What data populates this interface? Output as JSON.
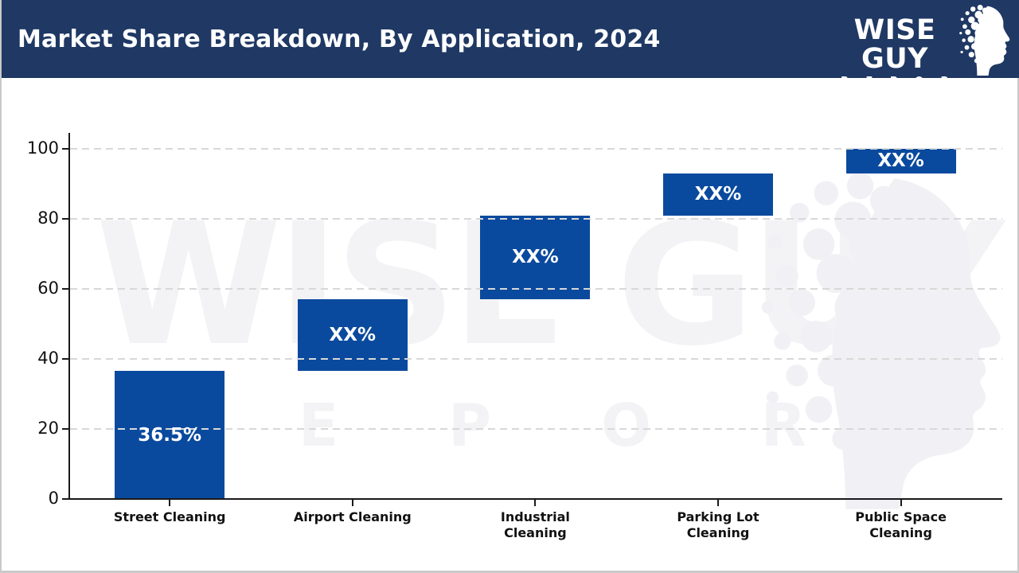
{
  "header": {
    "title": "Market Share Breakdown, By Application, 2024",
    "logo": {
      "line1": "WISE GUY",
      "line2": "R E P O R T S"
    }
  },
  "watermark": {
    "line1": "WISE GUY",
    "line2": "R E P O R T S"
  },
  "chart_data": {
    "type": "bar",
    "subtype": "waterfall",
    "title": "Market Share Breakdown, By Application, 2024",
    "categories": [
      "Street Cleaning",
      "Airport Cleaning",
      "Industrial Cleaning",
      "Parking Lot Cleaning",
      "Public Space Cleaning"
    ],
    "tick_labels": [
      "Street Cleaning",
      "Airport Cleaning",
      "Industrial\nCleaning",
      "Parking Lot\nCleaning",
      "Public Space\nCleaning"
    ],
    "segments": [
      {
        "category": "Street Cleaning",
        "start": 0,
        "end": 36.5,
        "label": "36.5%"
      },
      {
        "category": "Airport Cleaning",
        "start": 36.5,
        "end": 57,
        "label": "XX%"
      },
      {
        "category": "Industrial Cleaning",
        "start": 57,
        "end": 81,
        "label": "XX%"
      },
      {
        "category": "Parking Lot Cleaning",
        "start": 81,
        "end": 93,
        "label": "XX%"
      },
      {
        "category": "Public Space Cleaning",
        "start": 93,
        "end": 100,
        "label": "XX%"
      }
    ],
    "values": [
      36.5,
      20.5,
      24,
      12,
      7
    ],
    "ylim": [
      0,
      100
    ],
    "yticks": [
      0,
      20,
      40,
      60,
      80,
      100
    ],
    "xlabel": "",
    "ylabel": "",
    "grid": "horizontal dashed, drawn above bars",
    "legend": "none",
    "bar_color": "#0a4a9e",
    "bar_label_color": "#ffffff"
  },
  "colors": {
    "header_bg": "#1f3864",
    "bar": "#0a4a9e",
    "grid": "#d8d8d8",
    "axis": "#1a1a1a",
    "watermark": "#f3f3f6",
    "frame_border": "#c9c9c9"
  }
}
